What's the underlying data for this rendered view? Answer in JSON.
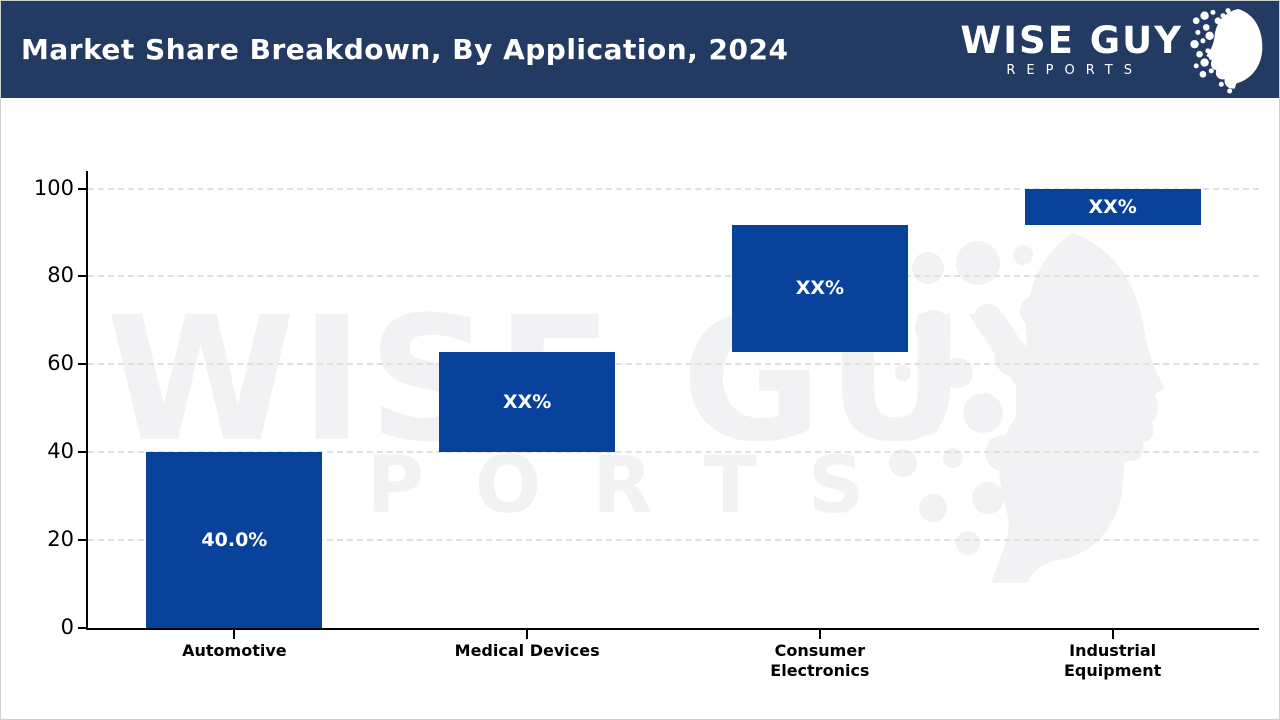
{
  "header": {
    "title": "Market Share Breakdown, By Application, 2024",
    "logo": {
      "line1": "WISE GUY",
      "line2": "REPORTS"
    }
  },
  "watermark": {
    "line1": "WISE GUY",
    "line2": "R E P O R T S"
  },
  "chart_data": {
    "type": "bar",
    "subtype": "waterfall",
    "title": "Market Share Breakdown, By Application, 2024",
    "categories": [
      "Automotive",
      "Medical Devices",
      "Consumer Electronics",
      "Industrial Equipment"
    ],
    "categories_lines": [
      [
        "Automotive"
      ],
      [
        "Medical Devices"
      ],
      [
        "Consumer",
        "Electronics"
      ],
      [
        "Industrial",
        "Equipment"
      ]
    ],
    "series": [
      {
        "name": "Market Share",
        "segments": [
          {
            "category": "Automotive",
            "start": 0,
            "end": 40,
            "value": 40.0,
            "label": "40.0%"
          },
          {
            "category": "Medical Devices",
            "start": 40,
            "end": 62.9,
            "value": 22.9,
            "label": "XX%"
          },
          {
            "category": "Consumer Electronics",
            "start": 62.9,
            "end": 91.7,
            "value": 28.8,
            "label": "XX%"
          },
          {
            "category": "Industrial Equipment",
            "start": 91.7,
            "end": 100,
            "value": 8.3,
            "label": "XX%"
          }
        ]
      }
    ],
    "yticks": [
      0,
      20,
      40,
      60,
      80,
      100
    ],
    "ylim": [
      0,
      105
    ],
    "xlabel": "",
    "ylabel": "",
    "grid": true,
    "legend": false,
    "colors": {
      "bar": "#08429a",
      "grid": "#e0e0e0",
      "axis": "#000000",
      "header_bg": "#233a63",
      "bar_label_text": "#ffffff",
      "watermark": "#f2f2f4"
    }
  }
}
